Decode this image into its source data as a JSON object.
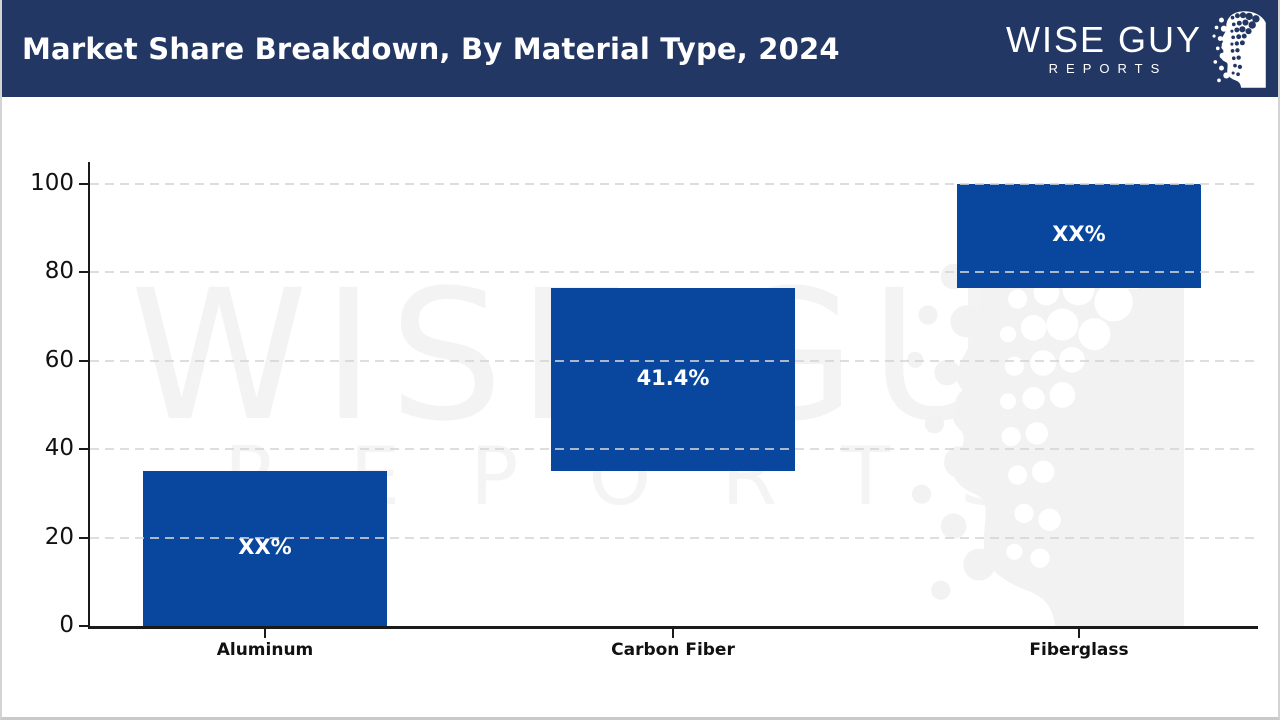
{
  "header": {
    "title": "Market Share Breakdown, By Material Type, 2024",
    "logo": {
      "line1": "WISE GUY",
      "line2": "REPORTS"
    }
  },
  "watermark": {
    "line1": "WISE GUY",
    "line2": "REPORTS"
  },
  "chart_data": {
    "type": "bar",
    "subtype": "floating-waterfall",
    "title": "Market Share Breakdown, By Material Type, 2024",
    "categories": [
      "Aluminum",
      "Carbon Fiber",
      "Fiberglass"
    ],
    "segments": [
      {
        "category": "Aluminum",
        "label": "XX%",
        "start": 0,
        "end": 35.0
      },
      {
        "category": "Carbon Fiber",
        "label": "41.4%",
        "start": 35.0,
        "end": 76.4
      },
      {
        "category": "Fiberglass",
        "label": "XX%",
        "start": 76.4,
        "end": 100
      }
    ],
    "yticks": [
      0,
      20,
      40,
      60,
      80,
      100
    ],
    "ylim": [
      0,
      105
    ],
    "xlabel": "",
    "ylabel": "",
    "grid": "horizontal-dashed",
    "legend": "none",
    "bar_color": "#08479d",
    "bar_label_color": "#ffffff"
  },
  "colors": {
    "header_bg": "#233765",
    "bar": "#08479d",
    "axis": "#1a1a1a",
    "gridline": "#d9d9d9",
    "watermark": "#f2f2f2",
    "page_border": "#d0d0d0"
  }
}
